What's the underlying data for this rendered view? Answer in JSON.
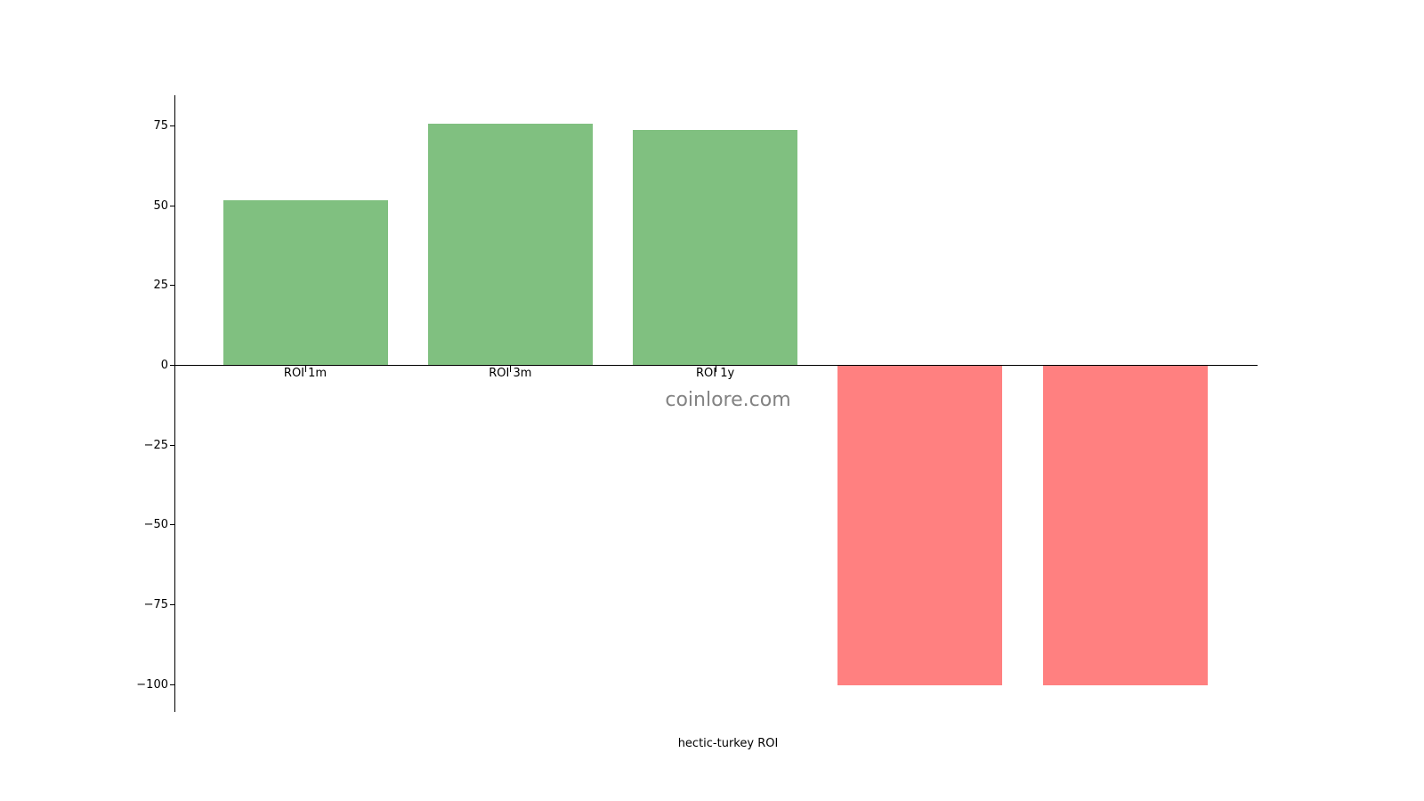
{
  "chart_data": {
    "type": "bar",
    "title": "hectic-turkey ROI",
    "watermark": "coinlore.com",
    "categories": [
      "ROI 1m",
      "ROI 3m",
      "ROI 1y",
      "",
      ""
    ],
    "values": [
      52,
      76,
      74,
      -100,
      -100
    ],
    "series": [
      {
        "name": "ROI",
        "values": [
          52,
          76,
          74,
          -100,
          -100
        ]
      }
    ],
    "bar_colors": [
      "#80c080",
      "#80c080",
      "#80c080",
      "#ff8080",
      "#ff8080"
    ],
    "positive_color": "#80c080",
    "negative_color": "#ff8080",
    "xlabel": "",
    "ylabel": "",
    "ylim": [
      -108.8,
      84.8
    ],
    "yticks": [
      75,
      50,
      25,
      0,
      -25,
      -50,
      -75,
      -100
    ],
    "ytick_labels": [
      "75",
      "50",
      "25",
      "0",
      "−25",
      "−50",
      "−75",
      "−100"
    ],
    "grid": false,
    "legend": null,
    "layout_hints": {
      "x_tick_labels_hidden_behind_bars": [
        3,
        4
      ],
      "axis_color": "#000000",
      "background": "#ffffff"
    }
  }
}
